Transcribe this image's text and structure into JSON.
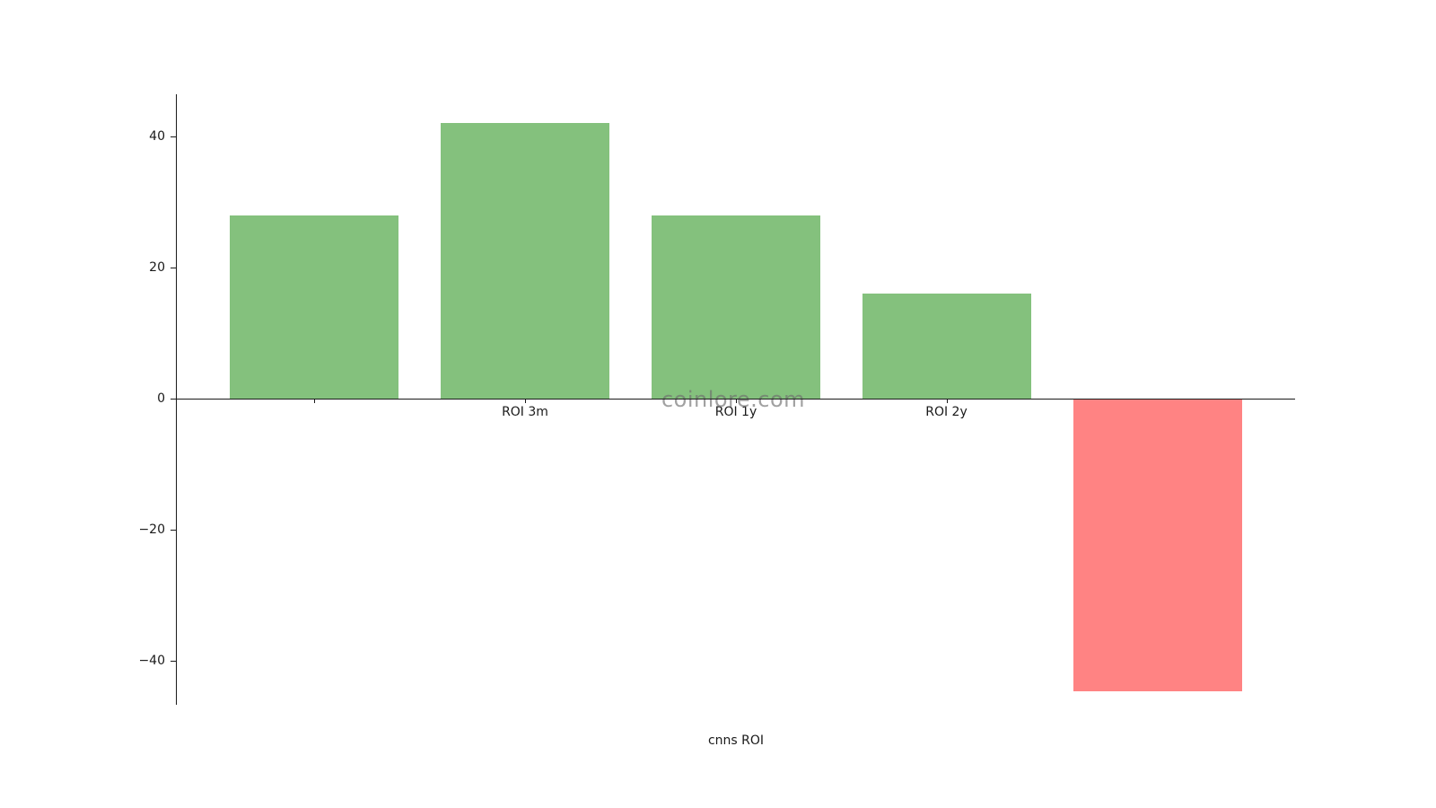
{
  "page": {
    "background": "#ffffff"
  },
  "chart_data": {
    "type": "bar",
    "title": "",
    "xlabel": "cnns ROI",
    "ylabel": "",
    "categories": [
      "",
      "ROI 3m",
      "ROI 1y",
      "ROI 2y",
      ""
    ],
    "values": [
      28,
      42,
      28,
      16,
      -44.5
    ],
    "positive_color": "#84c17d",
    "negative_color": "#ff8383",
    "y_ticks": [
      40,
      20,
      0,
      -20,
      -40
    ],
    "y_tick_labels": [
      "40",
      "20",
      "0",
      "−20",
      "−40"
    ],
    "ylim": [
      -46.7,
      46.4
    ],
    "grid": false,
    "legend": null,
    "axis_color": "#1a1a1a",
    "watermark": "coinlore.com",
    "watermark_color": "#6e6e6e"
  }
}
